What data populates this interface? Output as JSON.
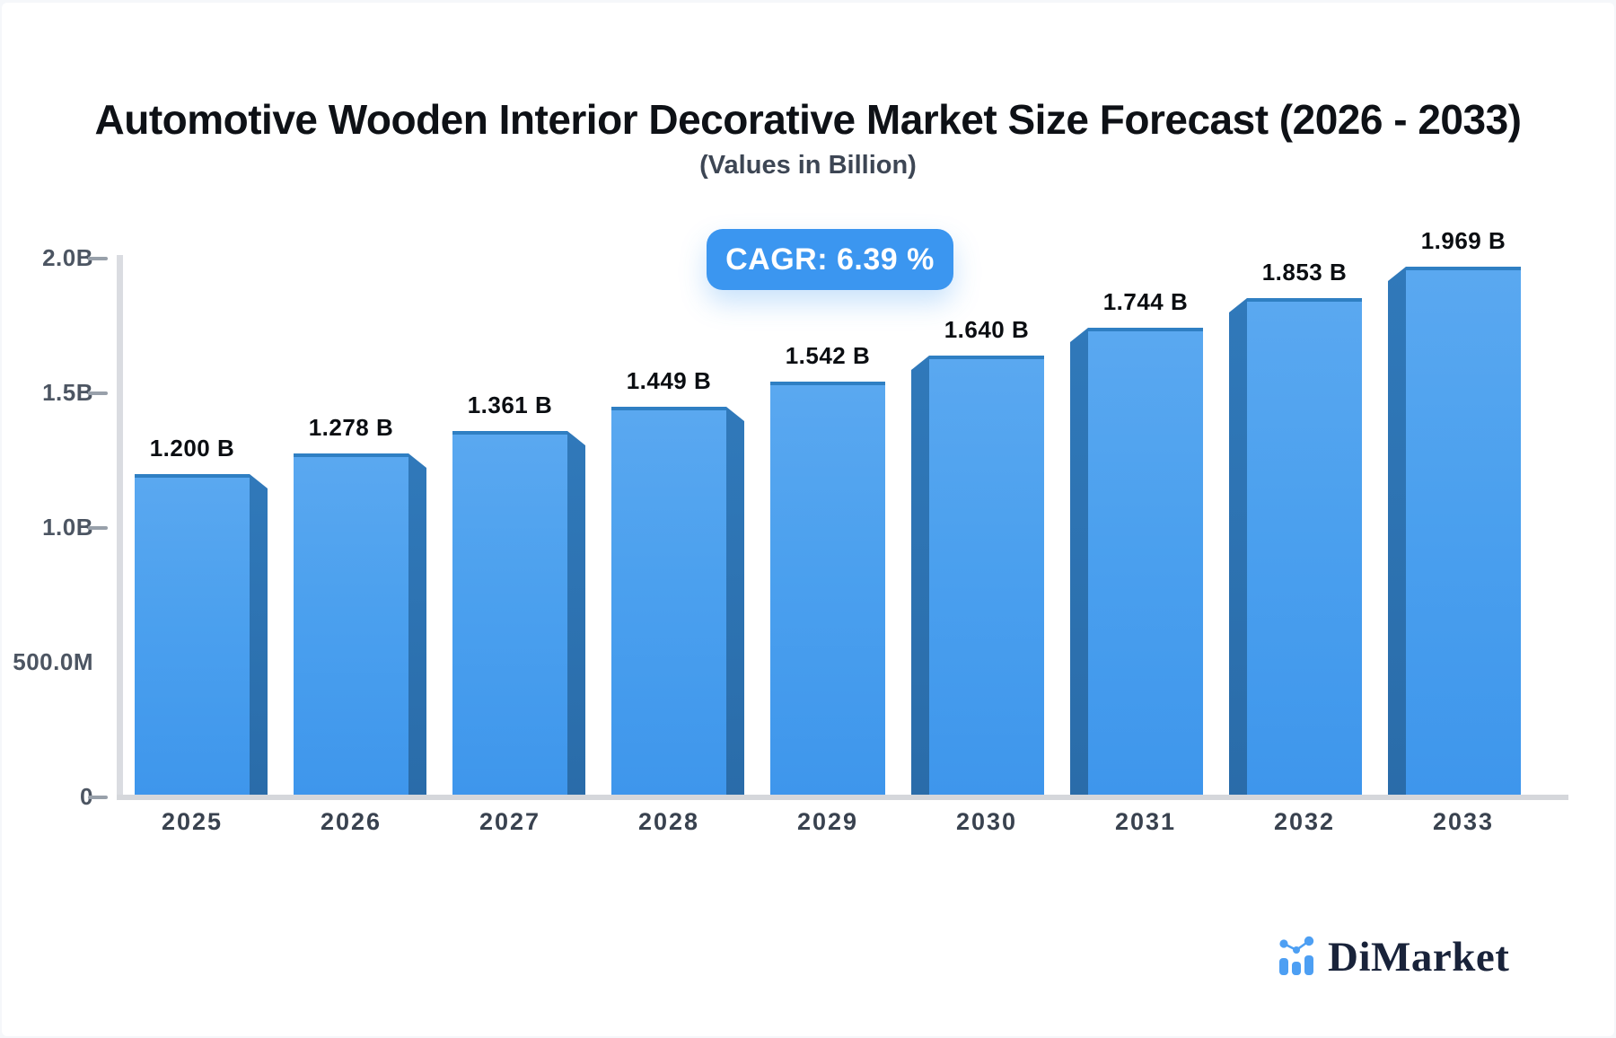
{
  "header": {
    "title": "Automotive Wooden Interior Decorative Market Size Forecast (2026 - 2033)",
    "subtitle": "(Values in Billion)"
  },
  "badge": {
    "label": "CAGR: 6.39 %",
    "background": "#3b96f0",
    "text_color": "#ffffff"
  },
  "chart_data": {
    "type": "bar",
    "title": "Automotive Wooden Interior Decorative Market Size Forecast (2026 - 2033)",
    "subtitle": "(Values in Billion)",
    "unit": "Billion",
    "cagr_percent": 6.39,
    "categories": [
      "2025",
      "2026",
      "2027",
      "2028",
      "2029",
      "2030",
      "2031",
      "2032",
      "2033"
    ],
    "values": [
      1.2,
      1.278,
      1.361,
      1.449,
      1.542,
      1.64,
      1.744,
      1.853,
      1.969
    ],
    "value_labels": [
      "1.200 B",
      "1.278 B",
      "1.361 B",
      "1.449 B",
      "1.542 B",
      "1.640 B",
      "1.744 B",
      "1.853 B",
      "1.969 B"
    ],
    "ylim": [
      0,
      2.0
    ],
    "y_ticks": [
      {
        "label": "2.0B",
        "value": 2.0,
        "dash": true
      },
      {
        "label": "1.5B",
        "value": 1.5,
        "dash": true
      },
      {
        "label": "1.0B",
        "value": 1.0,
        "dash": true
      },
      {
        "label": "500.0M",
        "value": 0.5,
        "dash": false
      },
      {
        "label": "0",
        "value": 0.0,
        "dash": true
      }
    ],
    "grid": false,
    "legend": "none",
    "bar_color_top": "#5aa8f0",
    "bar_color_bottom": "#3e96ec",
    "bar_side_color": "#2e74b2",
    "bar_top_edge_color": "#2f7fc3"
  },
  "footer": {
    "brand": "DiMarket",
    "logo_icon": "bar-chart-trendline-icon",
    "brand_color": "#19233a",
    "icon_color": "#4d9ff3"
  }
}
